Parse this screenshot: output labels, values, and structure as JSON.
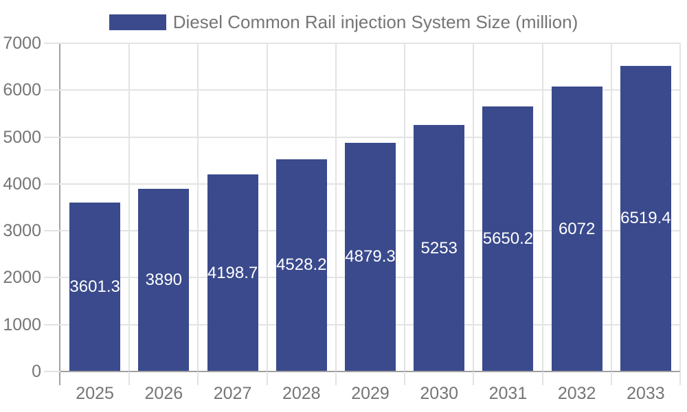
{
  "legend": {
    "label": "Diesel Common Rail injection System Size (million)"
  },
  "chart_data": {
    "type": "bar",
    "title": "Diesel Common Rail injection System Size (million)",
    "categories": [
      "2025",
      "2026",
      "2027",
      "2028",
      "2029",
      "2030",
      "2031",
      "2032",
      "2033"
    ],
    "values": [
      3601.3,
      3890,
      4198.7,
      4528.2,
      4879.3,
      5253,
      5650.2,
      6072,
      6519.4
    ],
    "value_labels": [
      "3601.3",
      "3890",
      "4198.7",
      "4528.2",
      "4879.3",
      "5253",
      "5650.2",
      "6072",
      "6519.4"
    ],
    "xlabel": "",
    "ylabel": "",
    "ylim": [
      0,
      7000
    ],
    "ytick_step": 1000,
    "ytick_labels": [
      "0",
      "1000",
      "2000",
      "3000",
      "4000",
      "5000",
      "6000",
      "7000"
    ],
    "grid": true,
    "legend_position": "top",
    "value_label_position": "inside-center",
    "colors": {
      "bar": "#3A4A8C",
      "bar_label_text": "#FFFFFF",
      "grid_line": "#E3E3E3",
      "axis_line": "#A0A0A0",
      "axis_text": "#757575",
      "legend_text": "#757575",
      "background": "#FFFFFF"
    }
  }
}
